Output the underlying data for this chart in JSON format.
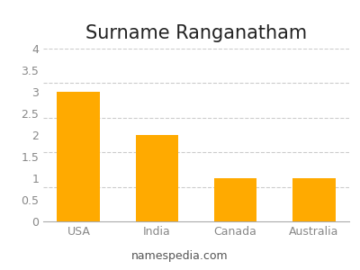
{
  "title": "Surname Ranganatham",
  "categories": [
    "USA",
    "India",
    "Canada",
    "Australia"
  ],
  "values": [
    3,
    2,
    1,
    1
  ],
  "bar_color": "#FFAA00",
  "ylim": [
    0,
    4
  ],
  "yticks": [
    0,
    0.5,
    1,
    1.5,
    2,
    2.5,
    3,
    3.5,
    4
  ],
  "grid_ticks": [
    0.8,
    1.6,
    2.4,
    3.2,
    4.0
  ],
  "title_fontsize": 15,
  "tick_fontsize": 9,
  "footer_text": "namespedia.com",
  "footer_fontsize": 9,
  "background_color": "#ffffff",
  "bar_width": 0.55
}
